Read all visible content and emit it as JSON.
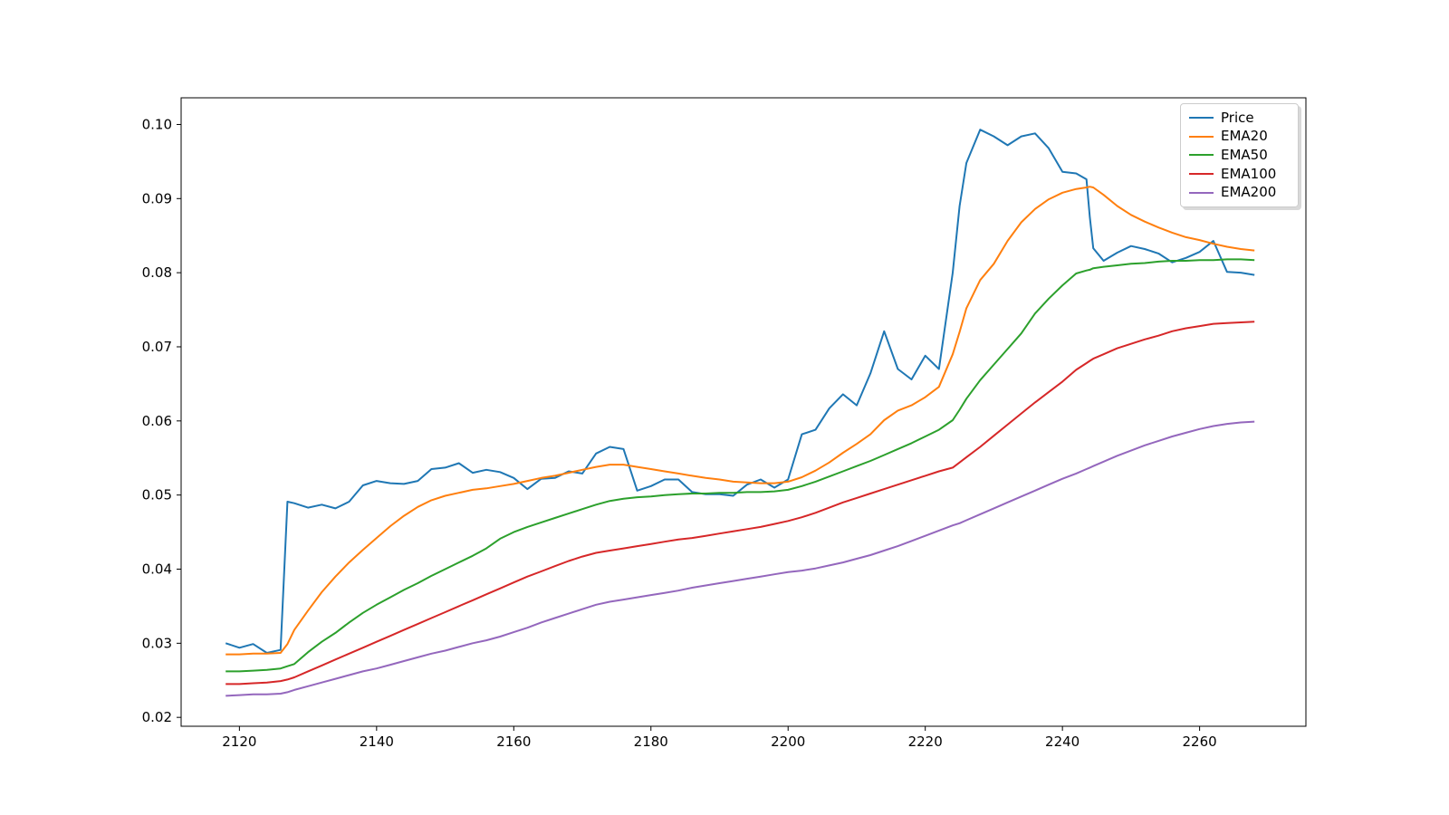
{
  "window": {
    "background": "#ffffff"
  },
  "axes": {
    "spine_color": "#000000",
    "tick_color": "#000000",
    "tick_label_color": "#000000",
    "x_tick_labels": [
      "2120",
      "2140",
      "2160",
      "2180",
      "2200",
      "2220",
      "2240",
      "2260"
    ],
    "y_tick_labels": [
      "0.02",
      "0.03",
      "0.04",
      "0.05",
      "0.06",
      "0.07",
      "0.08",
      "0.09",
      "0.10"
    ]
  },
  "legend": {
    "entries": [
      {
        "label": "Price",
        "color": "#1f77b4"
      },
      {
        "label": "EMA20",
        "color": "#ff7f0e"
      },
      {
        "label": "EMA50",
        "color": "#2ca02c"
      },
      {
        "label": "EMA100",
        "color": "#d62728"
      },
      {
        "label": "EMA200",
        "color": "#9467bd"
      }
    ],
    "position": "upper right"
  },
  "chart_data": {
    "type": "line",
    "title": "",
    "xlabel": "",
    "ylabel": "",
    "grid": false,
    "legend_position": "upper right",
    "xlim": [
      2111.5,
      2275.5
    ],
    "ylim": [
      0.0188,
      0.1036
    ],
    "x_ticks": [
      2120,
      2140,
      2160,
      2180,
      2200,
      2220,
      2240,
      2260
    ],
    "y_ticks": [
      0.02,
      0.03,
      0.04,
      0.05,
      0.06,
      0.07,
      0.08,
      0.09,
      0.1
    ],
    "x": [
      2118,
      2120,
      2122,
      2124,
      2126,
      2127,
      2128,
      2130,
      2132,
      2134,
      2136,
      2138,
      2140,
      2142,
      2144,
      2146,
      2148,
      2150,
      2152,
      2154,
      2156,
      2158,
      2160,
      2162,
      2164,
      2166,
      2168,
      2170,
      2172,
      2174,
      2176,
      2178,
      2180,
      2182,
      2184,
      2186,
      2188,
      2190,
      2192,
      2194,
      2196,
      2198,
      2200,
      2202,
      2204,
      2206,
      2208,
      2210,
      2212,
      2214,
      2216,
      2218,
      2220,
      2222,
      2224,
      2225,
      2226,
      2228,
      2230,
      2232,
      2234,
      2236,
      2238,
      2240,
      2242,
      2243.5,
      2244,
      2244.5,
      2246,
      2248,
      2250,
      2252,
      2254,
      2256,
      2258,
      2260,
      2262,
      2264,
      2266,
      2268
    ],
    "series": [
      {
        "name": "Price",
        "color": "#1f77b4",
        "values": [
          0.03,
          0.0294,
          0.0299,
          0.0287,
          0.0291,
          0.0491,
          0.0489,
          0.0483,
          0.0487,
          0.0482,
          0.0491,
          0.0513,
          0.0519,
          0.0516,
          0.0515,
          0.0519,
          0.0535,
          0.0537,
          0.0543,
          0.053,
          0.0534,
          0.0531,
          0.0523,
          0.0508,
          0.0522,
          0.0523,
          0.0532,
          0.0529,
          0.0556,
          0.0565,
          0.0562,
          0.0506,
          0.0512,
          0.0521,
          0.0521,
          0.0504,
          0.0501,
          0.0501,
          0.0499,
          0.0514,
          0.0521,
          0.051,
          0.0521,
          0.0582,
          0.0588,
          0.0617,
          0.0636,
          0.0621,
          0.0664,
          0.0721,
          0.067,
          0.0656,
          0.0688,
          0.067,
          0.08,
          0.089,
          0.0948,
          0.0993,
          0.0984,
          0.0972,
          0.0984,
          0.0988,
          0.0968,
          0.0936,
          0.0934,
          0.0926,
          0.0875,
          0.0833,
          0.0816,
          0.0827,
          0.0836,
          0.0832,
          0.0826,
          0.0814,
          0.082,
          0.0828,
          0.0843,
          0.0801,
          0.08,
          0.0797
        ]
      },
      {
        "name": "EMA20",
        "color": "#ff7f0e",
        "values": [
          0.0285,
          0.0285,
          0.0286,
          0.0286,
          0.0287,
          0.0299,
          0.0318,
          0.0344,
          0.0369,
          0.039,
          0.0409,
          0.0426,
          0.0442,
          0.0458,
          0.0472,
          0.0484,
          0.0493,
          0.0499,
          0.0503,
          0.0507,
          0.0509,
          0.0512,
          0.0515,
          0.0519,
          0.0523,
          0.0526,
          0.053,
          0.0534,
          0.0538,
          0.0541,
          0.0541,
          0.0538,
          0.0535,
          0.0532,
          0.0529,
          0.0526,
          0.0523,
          0.0521,
          0.0518,
          0.0517,
          0.0516,
          0.0516,
          0.0518,
          0.0524,
          0.0533,
          0.0544,
          0.0557,
          0.0569,
          0.0582,
          0.0601,
          0.0614,
          0.0621,
          0.0632,
          0.0646,
          0.069,
          0.072,
          0.0752,
          0.079,
          0.0812,
          0.0843,
          0.0868,
          0.0886,
          0.0899,
          0.0908,
          0.0913,
          0.0915,
          0.0916,
          0.0915,
          0.0905,
          0.089,
          0.0878,
          0.0869,
          0.0861,
          0.0854,
          0.0848,
          0.0844,
          0.0839,
          0.0835,
          0.0832,
          0.083
        ]
      },
      {
        "name": "EMA50",
        "color": "#2ca02c",
        "values": [
          0.0262,
          0.0262,
          0.0263,
          0.0264,
          0.0266,
          0.0269,
          0.0272,
          0.0288,
          0.0302,
          0.0314,
          0.0328,
          0.0341,
          0.0352,
          0.0362,
          0.0372,
          0.0381,
          0.0391,
          0.04,
          0.0409,
          0.0418,
          0.0428,
          0.0441,
          0.045,
          0.0457,
          0.0463,
          0.0469,
          0.0475,
          0.0481,
          0.0487,
          0.0492,
          0.0495,
          0.0497,
          0.0498,
          0.05,
          0.0501,
          0.0502,
          0.0502,
          0.0503,
          0.0503,
          0.0504,
          0.0504,
          0.0505,
          0.0507,
          0.0512,
          0.0518,
          0.0525,
          0.0532,
          0.0539,
          0.0546,
          0.0554,
          0.0562,
          0.057,
          0.0579,
          0.0588,
          0.0601,
          0.0615,
          0.063,
          0.0655,
          0.0676,
          0.0697,
          0.0718,
          0.0745,
          0.0765,
          0.0783,
          0.0799,
          0.0803,
          0.0804,
          0.0806,
          0.0808,
          0.081,
          0.0812,
          0.0813,
          0.0815,
          0.0816,
          0.0816,
          0.0817,
          0.0817,
          0.0818,
          0.0818,
          0.0817
        ]
      },
      {
        "name": "EMA100",
        "color": "#d62728",
        "values": [
          0.0245,
          0.0245,
          0.0246,
          0.0247,
          0.0249,
          0.0251,
          0.0254,
          0.0262,
          0.027,
          0.0278,
          0.0286,
          0.0294,
          0.0302,
          0.031,
          0.0318,
          0.0326,
          0.0334,
          0.0342,
          0.035,
          0.0358,
          0.0366,
          0.0374,
          0.0382,
          0.039,
          0.0397,
          0.0404,
          0.0411,
          0.0417,
          0.0422,
          0.0425,
          0.0428,
          0.0431,
          0.0434,
          0.0437,
          0.044,
          0.0442,
          0.0445,
          0.0448,
          0.0451,
          0.0454,
          0.0457,
          0.0461,
          0.0465,
          0.047,
          0.0476,
          0.0483,
          0.049,
          0.0496,
          0.0502,
          0.0508,
          0.0514,
          0.052,
          0.0526,
          0.0532,
          0.0537,
          0.0544,
          0.0551,
          0.0565,
          0.058,
          0.0595,
          0.061,
          0.0625,
          0.0639,
          0.0653,
          0.0669,
          0.0678,
          0.0681,
          0.0684,
          0.069,
          0.0698,
          0.0704,
          0.071,
          0.0715,
          0.0721,
          0.0725,
          0.0728,
          0.0731,
          0.0732,
          0.0733,
          0.0734
        ]
      },
      {
        "name": "EMA200",
        "color": "#9467bd",
        "values": [
          0.0229,
          0.023,
          0.0231,
          0.0231,
          0.0232,
          0.0234,
          0.0237,
          0.0242,
          0.0247,
          0.0252,
          0.0257,
          0.0262,
          0.0266,
          0.0271,
          0.0276,
          0.0281,
          0.0286,
          0.029,
          0.0295,
          0.03,
          0.0304,
          0.0309,
          0.0315,
          0.0321,
          0.0328,
          0.0334,
          0.034,
          0.0346,
          0.0352,
          0.0356,
          0.0359,
          0.0362,
          0.0365,
          0.0368,
          0.0371,
          0.0375,
          0.0378,
          0.0381,
          0.0384,
          0.0387,
          0.039,
          0.0393,
          0.0396,
          0.0398,
          0.0401,
          0.0405,
          0.0409,
          0.0414,
          0.0419,
          0.0425,
          0.0431,
          0.0438,
          0.0445,
          0.0452,
          0.0459,
          0.0462,
          0.0466,
          0.0474,
          0.0482,
          0.049,
          0.0498,
          0.0506,
          0.0514,
          0.0522,
          0.0529,
          0.0535,
          0.0537,
          0.0539,
          0.0545,
          0.0553,
          0.056,
          0.0567,
          0.0573,
          0.0579,
          0.0584,
          0.0589,
          0.0593,
          0.0596,
          0.0598,
          0.0599
        ]
      }
    ]
  }
}
